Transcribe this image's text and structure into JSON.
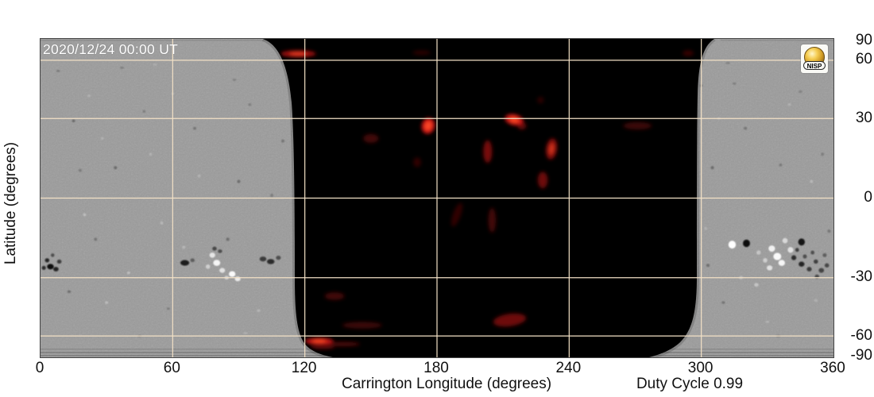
{
  "figure": {
    "date_label": "2020/12/24 00:00 UT",
    "xlabel": "Carrington Longitude (degrees)",
    "ylabel": "Latitude (degrees)",
    "duty_cycle_label": "Duty Cycle 0.99",
    "logo_text": "NISP",
    "colors": {
      "grid": "#f3e1c6",
      "farside_background": "#000000",
      "frontside_gray": "#9b9b9b",
      "detection_red": "#d91515",
      "detection_red_core": "#ff4a26",
      "date_text": "#ffffff",
      "axis_text": "#111111"
    }
  },
  "chart_data": {
    "type": "heatmap",
    "xlabel": "Carrington Longitude (degrees)",
    "ylabel": "Latitude (degrees)",
    "x_ticks": [
      0,
      60,
      120,
      180,
      240,
      300,
      360
    ],
    "y_ticks": [
      90,
      60,
      30,
      0,
      -30,
      -60,
      -90
    ],
    "x_range": [
      0,
      360
    ],
    "y_range": [
      -90,
      90
    ],
    "y_scale": "sine-latitude",
    "grid": true,
    "observation_time": "2020/12/24 00:00 UT",
    "duty_cycle": 0.99,
    "front_side_longitude_windows": [
      [
        0,
        115
      ],
      [
        299,
        360
      ]
    ],
    "far_side_longitude_window": [
      115,
      299
    ],
    "far_side_detection_columns": [
      "lon_deg",
      "lat_deg",
      "width_deg",
      "height_deg",
      "intensity",
      "rotation_deg"
    ],
    "far_side_detections": [
      [
        117,
        65,
        16,
        6,
        0.7,
        0
      ],
      [
        173,
        66,
        8,
        4,
        0.2,
        0
      ],
      [
        294,
        65.5,
        5,
        5,
        0.25,
        0
      ],
      [
        176,
        27,
        6,
        6.5,
        0.95,
        15
      ],
      [
        150,
        22,
        7,
        3.5,
        0.3,
        0
      ],
      [
        171,
        13,
        3.5,
        3.5,
        0.22,
        0
      ],
      [
        215,
        29.5,
        8.5,
        4.5,
        0.9,
        12
      ],
      [
        218.5,
        27,
        4,
        3,
        0.45,
        0
      ],
      [
        227,
        38,
        3,
        3,
        0.2,
        0
      ],
      [
        203,
        17,
        4,
        8.5,
        0.55,
        0
      ],
      [
        232,
        18,
        5,
        8,
        0.6,
        8
      ],
      [
        228,
        6.5,
        4.5,
        6,
        0.5,
        0
      ],
      [
        271,
        27,
        13,
        3,
        0.28,
        0
      ],
      [
        189,
        -6,
        3.5,
        9,
        0.22,
        20
      ],
      [
        205,
        -8,
        3.5,
        9,
        0.3,
        0
      ],
      [
        133.5,
        -38,
        9,
        3.5,
        0.3,
        0
      ],
      [
        146,
        -53,
        18,
        4,
        0.28,
        0
      ],
      [
        126.5,
        -64,
        13,
        6,
        0.85,
        0
      ],
      [
        137,
        -66.5,
        16,
        4,
        0.35,
        0
      ],
      [
        128,
        -69.5,
        11,
        4,
        0.45,
        0
      ],
      [
        213,
        -50,
        15,
        7,
        0.5,
        -8
      ]
    ],
    "front_side_feature_columns": [
      "lon_deg",
      "lat_deg",
      "polarity",
      "strength",
      "width_deg",
      "height_deg"
    ],
    "front_side_features": [
      [
        3,
        -23,
        -1,
        0.85,
        2,
        1.6
      ],
      [
        4.5,
        -25.5,
        -1,
        1,
        3,
        2.2
      ],
      [
        7,
        -26.5,
        -1,
        0.85,
        2.4,
        1.8
      ],
      [
        8.5,
        -23.5,
        -1,
        0.7,
        2,
        1.6
      ],
      [
        5.5,
        -21,
        -1,
        0.5,
        1.6,
        1.4
      ],
      [
        1.5,
        -26,
        -1,
        0.8,
        1.8,
        1.6
      ],
      [
        65.5,
        -24,
        -1,
        0.9,
        4,
        2.2
      ],
      [
        69,
        -23,
        -1,
        0.4,
        2,
        1.5
      ],
      [
        78,
        -21,
        1,
        0.75,
        2.6,
        2
      ],
      [
        80,
        -24,
        1,
        0.9,
        3.2,
        2.4
      ],
      [
        82.5,
        -27,
        1,
        0.7,
        2.6,
        2
      ],
      [
        76,
        -25.5,
        1,
        0.5,
        2,
        1.8
      ],
      [
        79,
        -18.5,
        -1,
        0.55,
        2,
        1.5
      ],
      [
        81.5,
        -19.5,
        -1,
        0.5,
        2,
        1.4
      ],
      [
        87,
        -28.5,
        1,
        0.95,
        3,
        2.4
      ],
      [
        89.5,
        -30.5,
        1,
        0.8,
        2.6,
        2
      ],
      [
        84.5,
        -30,
        1,
        0.5,
        2,
        1.6
      ],
      [
        101,
        -22.5,
        -1,
        0.7,
        3,
        1.9
      ],
      [
        104.5,
        -23.5,
        -1,
        0.8,
        3.4,
        2
      ],
      [
        108,
        -22,
        -1,
        0.5,
        2.2,
        1.6
      ],
      [
        20,
        -6,
        1,
        0.3,
        1.5,
        1.2
      ],
      [
        34,
        11,
        -1,
        0.3,
        1.5,
        1.2
      ],
      [
        55,
        -9,
        1,
        0.25,
        1.4,
        1.2
      ],
      [
        90,
        6,
        -1,
        0.3,
        1.4,
        1.2
      ],
      [
        30,
        -41,
        1,
        0.3,
        1.6,
        1.3
      ],
      [
        70,
        26,
        -1,
        0.25,
        1.4,
        1.2
      ],
      [
        15,
        29,
        -1,
        0.3,
        1.4,
        1.2
      ],
      [
        99,
        -45,
        1,
        0.25,
        1.6,
        1.3
      ],
      [
        45,
        -60,
        -1,
        0.2,
        1.8,
        1.4
      ],
      [
        8,
        53,
        -1,
        0.25,
        1.6,
        1.2
      ],
      [
        60,
        41,
        1,
        0.2,
        1.4,
        1.2
      ],
      [
        85,
        -15,
        -1,
        0.3,
        1.5,
        1.2
      ],
      [
        110,
        21,
        -1,
        0.25,
        1.4,
        1.2
      ],
      [
        95,
        36,
        -1,
        0.2,
        1.4,
        1.2
      ],
      [
        25,
        -15,
        -1,
        0.25,
        1.4,
        1.2
      ],
      [
        40,
        -28,
        1,
        0.3,
        1.5,
        1.2
      ],
      [
        65,
        -18,
        1,
        0.25,
        1.5,
        1.2
      ],
      [
        13,
        -36,
        -1,
        0.3,
        1.5,
        1.2
      ],
      [
        50,
        16,
        1,
        0.2,
        1.4,
        1.2
      ],
      [
        105,
        1,
        -1,
        0.2,
        1.4,
        1.2
      ],
      [
        37,
        55,
        -1,
        0.2,
        1.8,
        1.3
      ],
      [
        22,
        40,
        1,
        0.2,
        1.5,
        1.2
      ],
      [
        58,
        -44,
        -1,
        0.2,
        1.5,
        1.2
      ],
      [
        93,
        -58,
        1,
        0.2,
        1.8,
        1.4
      ],
      [
        28,
        22,
        1,
        0.2,
        1.4,
        1.1
      ],
      [
        47,
        33,
        -1,
        0.2,
        1.4,
        1.1
      ],
      [
        72,
        8,
        1,
        0.22,
        1.4,
        1.1
      ],
      [
        88,
        48,
        -1,
        0.18,
        1.6,
        1.2
      ],
      [
        18,
        10,
        -1,
        0.22,
        1.4,
        1.1
      ],
      [
        52,
        57,
        1,
        0.18,
        1.8,
        1.3
      ],
      [
        314,
        -17,
        1,
        1,
        3.4,
        3
      ],
      [
        320.5,
        -16.5,
        -1,
        1,
        3.2,
        2.8
      ],
      [
        332,
        -18.5,
        1,
        0.85,
        3,
        2.4
      ],
      [
        334.5,
        -21.5,
        1,
        0.95,
        3.6,
        2.8
      ],
      [
        336.5,
        -24,
        1,
        0.9,
        3,
        2.4
      ],
      [
        331,
        -26,
        1,
        0.7,
        2.6,
        2
      ],
      [
        338,
        -15.5,
        1,
        0.6,
        2.4,
        2
      ],
      [
        340.5,
        -19,
        1,
        0.7,
        2.6,
        2.2
      ],
      [
        345.5,
        -16,
        -1,
        0.95,
        3,
        2.6
      ],
      [
        342,
        -22,
        -1,
        0.8,
        2.2,
        1.9
      ],
      [
        345.5,
        -24.5,
        -1,
        0.85,
        2.6,
        2
      ],
      [
        349,
        -26.5,
        -1,
        0.7,
        2.2,
        1.8
      ],
      [
        352,
        -23.5,
        -1,
        0.6,
        2,
        1.7
      ],
      [
        354.5,
        -27,
        -1,
        0.65,
        2.4,
        1.9
      ],
      [
        350.5,
        -20,
        -1,
        0.5,
        1.7,
        1.5
      ],
      [
        357,
        -25,
        -1,
        0.55,
        2,
        1.7
      ],
      [
        343.5,
        -19,
        -1,
        0.6,
        1.7,
        1.5
      ],
      [
        326,
        -20,
        1,
        0.4,
        2,
        1.7
      ],
      [
        329,
        -23,
        1,
        0.5,
        2,
        1.8
      ],
      [
        347,
        -21.5,
        -1,
        0.5,
        1.8,
        1.6
      ],
      [
        352.5,
        -29.5,
        -1,
        0.5,
        2,
        1.7
      ],
      [
        356,
        -21,
        -1,
        0.4,
        1.8,
        1.5
      ],
      [
        305,
        11,
        -1,
        0.3,
        1.5,
        1.2
      ],
      [
        320,
        26,
        -1,
        0.25,
        1.5,
        1.2
      ],
      [
        350,
        6,
        1,
        0.25,
        1.5,
        1.2
      ],
      [
        310,
        -41,
        -1,
        0.25,
        1.6,
        1.3
      ],
      [
        330,
        -51,
        1,
        0.2,
        1.8,
        1.4
      ],
      [
        355,
        16,
        -1,
        0.2,
        1.4,
        1.2
      ],
      [
        315,
        46,
        -1,
        0.2,
        1.6,
        1.2
      ],
      [
        340,
        36,
        1,
        0.2,
        1.5,
        1.2
      ],
      [
        302,
        -11,
        1,
        0.2,
        1.4,
        1.2
      ],
      [
        325,
        -33,
        1,
        0.4,
        2,
        1.6
      ],
      [
        318,
        -30,
        1,
        0.3,
        1.8,
        1.4
      ],
      [
        308,
        30,
        1,
        0.2,
        1.4,
        1.1
      ],
      [
        345,
        42,
        -1,
        0.18,
        1.6,
        1.2
      ],
      [
        335,
        -60,
        -1,
        0.2,
        2,
        1.5
      ],
      [
        312,
        58,
        -1,
        0.18,
        2,
        1.4
      ],
      [
        300,
        45,
        -1,
        0.2,
        1.5,
        1.2
      ],
      [
        358,
        -12,
        -1,
        0.25,
        1.4,
        1.2
      ],
      [
        303,
        -25,
        -1,
        0.3,
        1.5,
        1.2
      ],
      [
        336,
        12,
        -1,
        0.22,
        1.4,
        1.1
      ],
      [
        352,
        -40,
        1,
        0.2,
        1.6,
        1.3
      ]
    ]
  }
}
